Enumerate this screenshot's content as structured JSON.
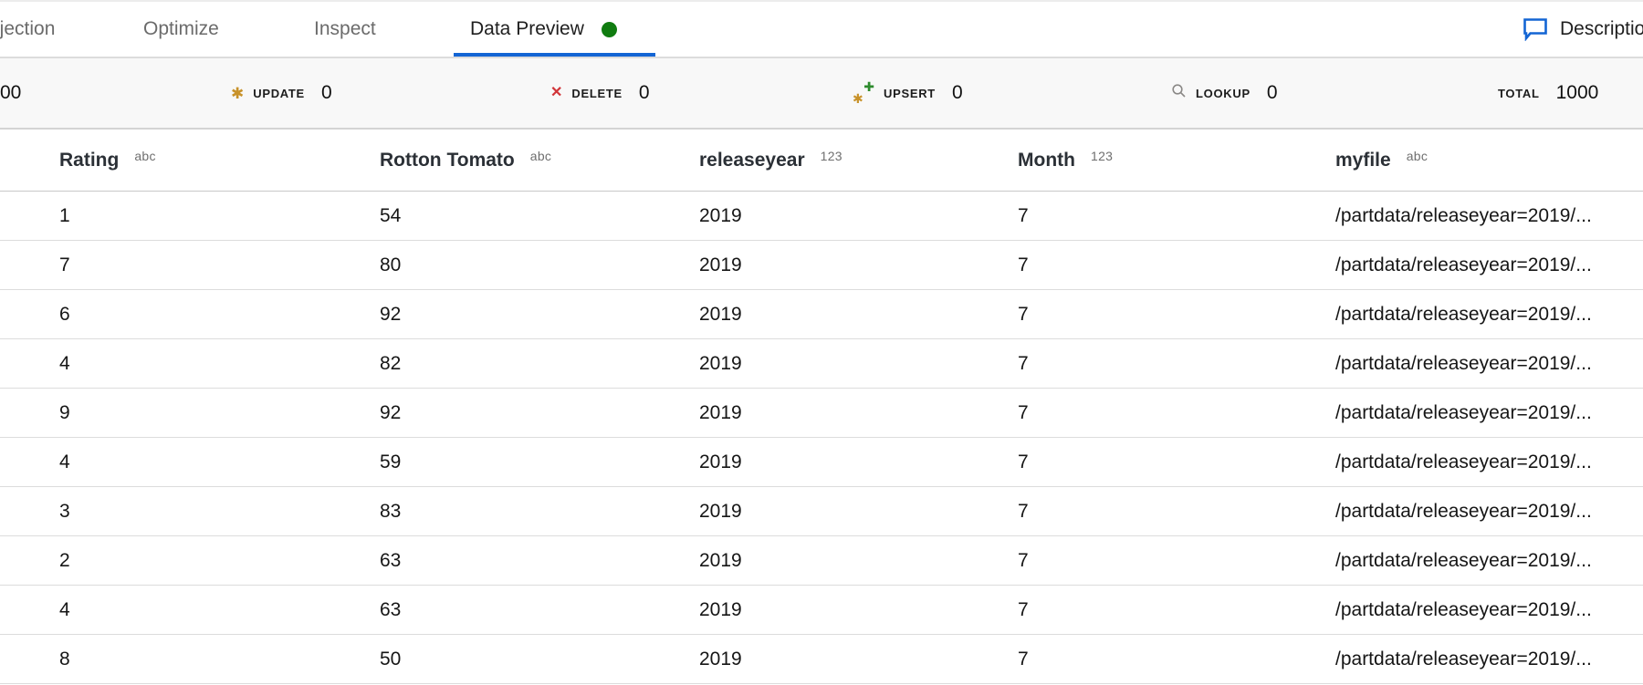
{
  "colors": {
    "accent_blue": "#1365d4",
    "status_green": "#107c10",
    "update_gold": "#c8922a",
    "delete_red": "#d13438",
    "upsert_green": "#2e8b2e",
    "lookup_gray": "#8a8886"
  },
  "tabs": {
    "items": [
      {
        "label": "Projection",
        "active": false
      },
      {
        "label": "Optimize",
        "active": false
      },
      {
        "label": "Inspect",
        "active": false
      },
      {
        "label": "Data Preview",
        "active": true,
        "status_dot": "green"
      }
    ],
    "description_label": "Description"
  },
  "stats": {
    "insert": {
      "visible_value": "00"
    },
    "update": {
      "label": "UPDATE",
      "value": "0",
      "icon": "gold-asterisk"
    },
    "delete": {
      "label": "DELETE",
      "value": "0",
      "icon": "red-x"
    },
    "upsert": {
      "label": "UPSERT",
      "value": "0",
      "icon": "gold-asterisk-green-plus"
    },
    "lookup": {
      "label": "LOOKUP",
      "value": "0",
      "icon": "magnifier"
    },
    "total": {
      "label": "TOTAL",
      "value": "1000"
    }
  },
  "table": {
    "columns": [
      {
        "name": "Rating",
        "type": "abc"
      },
      {
        "name": "Rotton Tomato",
        "type": "abc"
      },
      {
        "name": "releaseyear",
        "type": "123"
      },
      {
        "name": "Month",
        "type": "123"
      },
      {
        "name": "myfile",
        "type": "abc"
      }
    ],
    "rows": [
      [
        "1",
        "54",
        "2019",
        "7",
        "/partdata/releaseyear=2019/..."
      ],
      [
        "7",
        "80",
        "2019",
        "7",
        "/partdata/releaseyear=2019/..."
      ],
      [
        "6",
        "92",
        "2019",
        "7",
        "/partdata/releaseyear=2019/..."
      ],
      [
        "4",
        "82",
        "2019",
        "7",
        "/partdata/releaseyear=2019/..."
      ],
      [
        "9",
        "92",
        "2019",
        "7",
        "/partdata/releaseyear=2019/..."
      ],
      [
        "4",
        "59",
        "2019",
        "7",
        "/partdata/releaseyear=2019/..."
      ],
      [
        "3",
        "83",
        "2019",
        "7",
        "/partdata/releaseyear=2019/..."
      ],
      [
        "2",
        "63",
        "2019",
        "7",
        "/partdata/releaseyear=2019/..."
      ],
      [
        "4",
        "63",
        "2019",
        "7",
        "/partdata/releaseyear=2019/..."
      ],
      [
        "8",
        "50",
        "2019",
        "7",
        "/partdata/releaseyear=2019/..."
      ]
    ]
  }
}
